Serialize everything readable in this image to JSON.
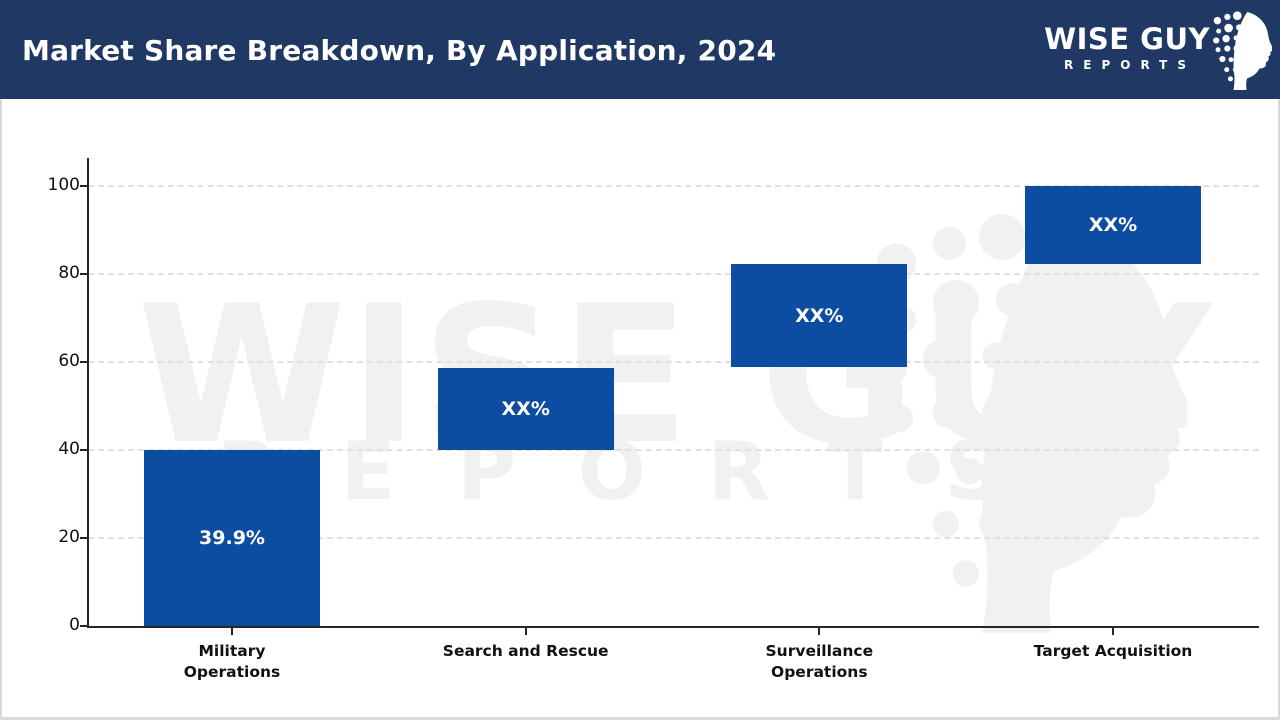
{
  "header": {
    "title": "Market Share Breakdown, By Application, 2024",
    "logo": {
      "name": "WISE GUY",
      "sub": "REPORTS"
    }
  },
  "watermark": {
    "line1": "WISE GUY",
    "line2": "REPORTS"
  },
  "chart_data": {
    "type": "bar",
    "subtype": "waterfall",
    "title": "Market Share Breakdown, By Application, 2024",
    "categories": [
      "Military\nOperations",
      "Search and Rescue",
      "Surveillance\nOperations",
      "Target Acquisition"
    ],
    "series": [
      {
        "name": "Market share (%)",
        "segments": [
          {
            "category": "Military Operations",
            "start": 0,
            "end": 39.9,
            "label": "39.9%"
          },
          {
            "category": "Search and Rescue",
            "start": 39.9,
            "end": 58.6,
            "label": "XX%"
          },
          {
            "category": "Surveillance Operations",
            "start": 58.8,
            "end": 82.2,
            "label": "XX%"
          },
          {
            "category": "Target Acquisition",
            "start": 82.2,
            "end": 100,
            "label": "XX%"
          }
        ]
      }
    ],
    "xlabel": "",
    "ylabel": "",
    "ylim": [
      0,
      100
    ],
    "yticks": [
      0,
      20,
      40,
      60,
      80,
      100
    ],
    "grid": "horizontal-dashed",
    "legend": "none",
    "bar_color": "#0c4da2",
    "bar_label_color": "#ffffff"
  },
  "colors": {
    "header_bg": "#203864",
    "bar": "#0c4da2",
    "axis": "#262626",
    "grid": "#e1e1e1",
    "text": "#111111",
    "watermark": "#f1f1f1",
    "frame": "#d9d9d9"
  }
}
